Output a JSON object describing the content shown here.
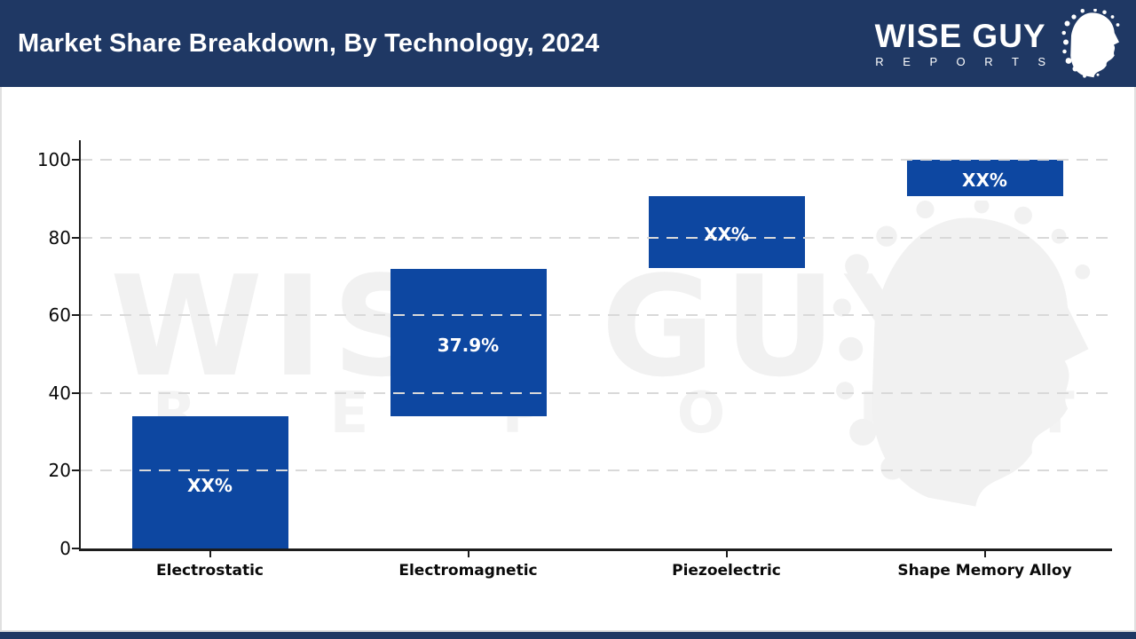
{
  "header": {
    "title": "Market Share Breakdown, By Technology, 2024",
    "logo": {
      "line1": "WISE GUY",
      "line2": "R E P O R T S"
    }
  },
  "watermark": {
    "line1": "WISE GUY",
    "line2": "R E P O R T S"
  },
  "chart_data": {
    "type": "bar",
    "subtype": "floating-segment-bars",
    "title": "Market Share Breakdown, By Technology, 2024",
    "categories": [
      "Electrostatic",
      "Electromagnetic",
      "Piezoelectric",
      "Shape Memory Alloy"
    ],
    "bars": [
      {
        "category": "Electrostatic",
        "start": 0,
        "end": 34,
        "label": "XX%"
      },
      {
        "category": "Electromagnetic",
        "start": 34,
        "end": 71.9,
        "label": "37.9%"
      },
      {
        "category": "Piezoelectric",
        "start": 72.2,
        "end": 90.8,
        "label": "XX%"
      },
      {
        "category": "Shape Memory Alloy",
        "start": 90.8,
        "end": 100.2,
        "label": "XX%"
      }
    ],
    "known_values": {
      "Electromagnetic": 37.9
    },
    "masked_value_placeholder": "XX%",
    "xlabel": "",
    "ylabel": "",
    "yticks": [
      0,
      20,
      40,
      60,
      80,
      100
    ],
    "ylim": [
      0,
      105.8
    ],
    "grid": "horizontal-dashed",
    "legend": "none"
  },
  "colors": {
    "header_bg": "#1F3864",
    "footer_bg": "#1F3864",
    "bar_fill": "#0D47A1",
    "bar_label": "#FFFFFF",
    "axis": "#1C1C1C",
    "gridline": "#D9D9D9",
    "watermark": "#F1F1F1",
    "background": "#FFFFFF"
  }
}
